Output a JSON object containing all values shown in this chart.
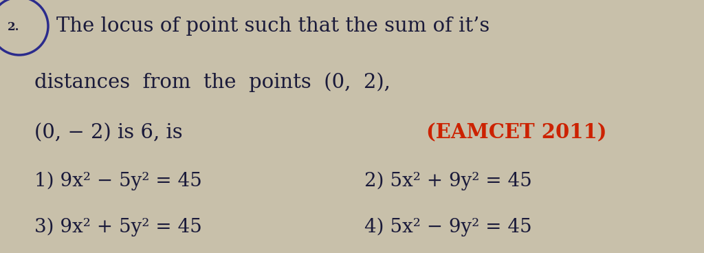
{
  "background_color": "#c8c0aa",
  "circle_color": "#2b2b8c",
  "line1": "The locus of point such that the sum of it’s",
  "line2": "distances  from  the  points  (0,  2),",
  "line3_left": "(0, − 2) is 6, is",
  "line3_right": "(EAMCET 2011)",
  "eamcet_color": "#cc2200",
  "option1": "1) 9x² − 5y² = 45",
  "option2": "2) 5x² + 9y² = 45",
  "option3": "3) 9x² + 5y² = 45",
  "option4": "4) 5x² − 9y² = 45",
  "text_color": "#1a1a3a",
  "font_size_main": 21,
  "font_size_options": 20,
  "q_num": "2."
}
